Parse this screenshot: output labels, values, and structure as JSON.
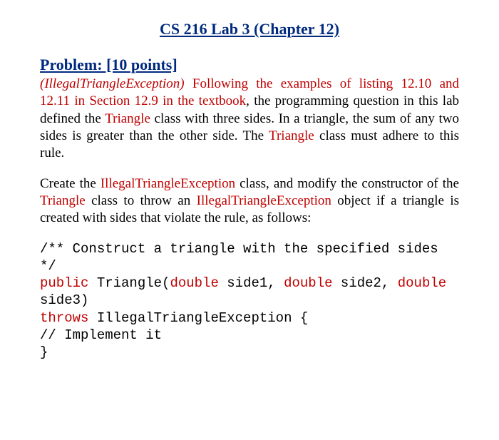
{
  "title": "CS 216 Lab 3 (Chapter 12)",
  "heading": "Problem: [10 points]",
  "para1": {
    "seg_italic_red": "(IllegalTriangleException)",
    "seg_red_1": " Following the examples of listing 12.10 and 12.11 in Section 12.9 in the textbook",
    "seg_black_1": ", the programming question in this lab defined the ",
    "seg_red_2": "Triangle",
    "seg_black_2": " class with three sides. In a triangle, the sum of any two sides is greater than the other side. The ",
    "seg_red_3": "Triangle",
    "seg_black_3": " class must adhere to this rule."
  },
  "para2": {
    "seg_black_1": "Create the ",
    "seg_red_1": "IllegalTriangleException",
    "seg_black_2": " class, and modify the constructor of the ",
    "seg_red_2": "Triangle",
    "seg_black_3": " class to throw an ",
    "seg_red_3": "IllegalTriangleException",
    "seg_black_4": " object if a triangle is created with sides that violate the rule, as follows:"
  },
  "code": {
    "line1": "/** Construct a triangle with the specified sides */",
    "line2_kw": "public",
    "line2_rest_a": " Triangle(",
    "line2_kw2": "double",
    "line2_rest_b": " side1, ",
    "line2_kw3": "double",
    "line2_rest_c": " side2, ",
    "line2_kw4": "double",
    "line2_rest_d": " side3)",
    "line3_kw": "throws",
    "line3_rest": " IllegalTriangleException {",
    "line4": "// Implement it",
    "line5": "}"
  },
  "colors": {
    "red": "#c00000",
    "blue": "#002a80",
    "black": "#000000",
    "background": "#ffffff"
  },
  "fontsize": {
    "title": 22,
    "heading": 22,
    "body": 19,
    "code": 19
  }
}
